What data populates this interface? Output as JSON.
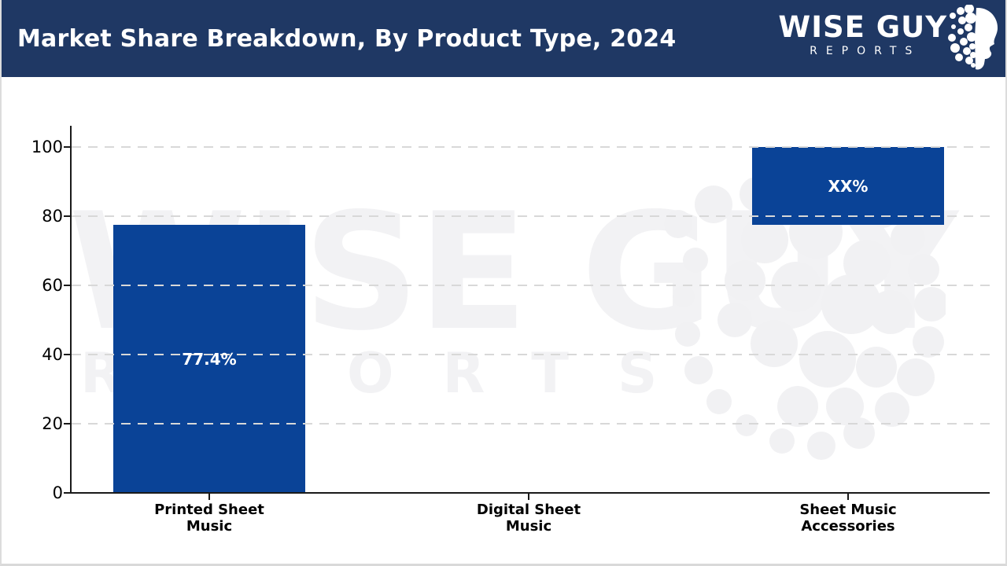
{
  "header": {
    "title": "Market Share Breakdown, By Product Type, 2024",
    "bg_color": "#1f3864",
    "logo": {
      "brand_line1": "WISE GUY",
      "brand_line2": "REPORTS"
    }
  },
  "watermark": {
    "line1": "WISE GUY",
    "line2": "REPORTS"
  },
  "chart_data": {
    "type": "bar",
    "title": "Market Share Breakdown, By Product Type, 2024",
    "categories": [
      "Printed Sheet Music",
      "Digital Sheet Music",
      "Sheet Music Accessories"
    ],
    "yticks": [
      "0",
      "20",
      "40",
      "60",
      "80",
      "100"
    ],
    "ylim": [
      0,
      105
    ],
    "xlabel": "",
    "ylabel": "",
    "legend": "none",
    "grid": "horizontal-dashed",
    "bar_color": "#0a4397",
    "gridline_color": "#d8d8d8",
    "bars": [
      {
        "category_line1": "Printed Sheet",
        "category_line2": "Music",
        "value": 77.4,
        "base": 0,
        "label": "77.4%"
      },
      {
        "category_line1": "Digital Sheet",
        "category_line2": "Music",
        "value": 0,
        "base": 0,
        "label": ""
      },
      {
        "category_line1": "Sheet Music",
        "category_line2": "Accessories",
        "value": 100,
        "base": 77.4,
        "label": "XX%"
      }
    ]
  }
}
